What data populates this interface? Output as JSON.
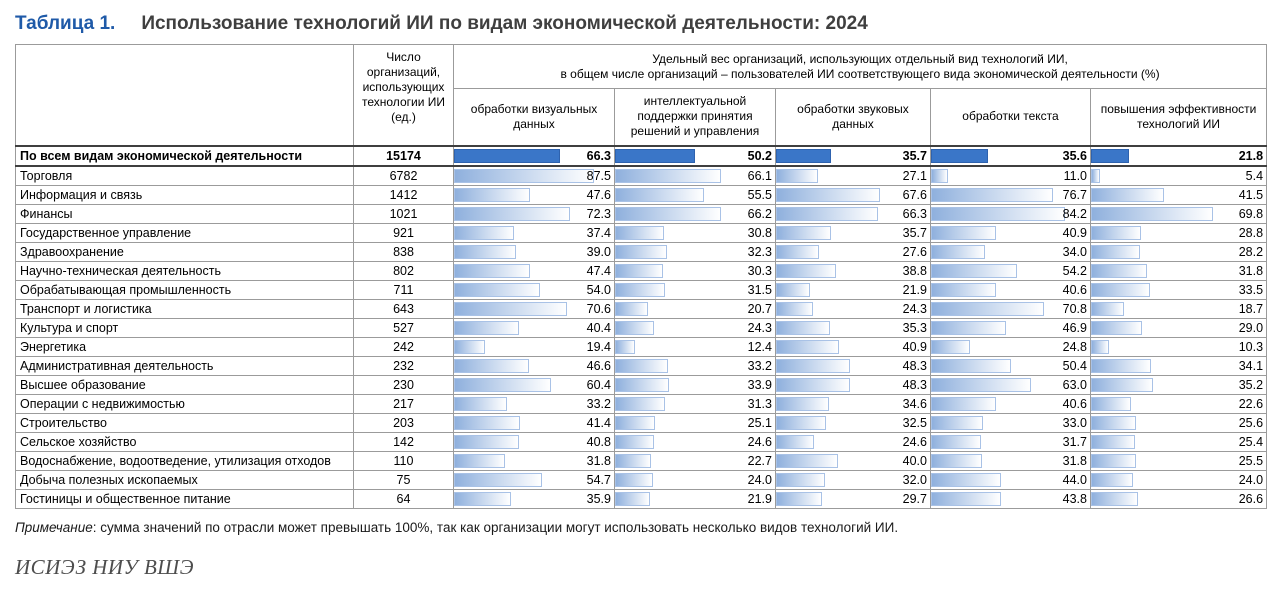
{
  "page": {
    "title_label": "Таблица 1.",
    "title_text": "Использование технологий ИИ по видам экономической деятельности: 2024",
    "note_prefix": "Примечание",
    "note_rest": ": сумма значений по отрасли может превышать 100%, так как организации могут использовать несколько видов технологий ИИ.",
    "footer": "ИСИЭЗ НИУ ВШЭ"
  },
  "table": {
    "org_header": "Число организаций, использующих технологии ИИ (ед.)",
    "group_header_line1": "Удельный вес организаций, использующих отдельный вид технологий ИИ,",
    "group_header_line2": "в общем числе организаций – пользователей ИИ соответствующего вида экономической деятельности (%)",
    "tech_columns": [
      "обработки  визуальных данных",
      "интеллектуальной поддержки принятия решений и управления",
      "обработки звуковых данных",
      "обработки текста",
      "повышения эффективности технологий ИИ"
    ]
  },
  "colors": {
    "title_accent": "#1F5AA8",
    "total_bar": "#3A76C8",
    "bar_gradient_start": "#8FB0DD",
    "bar_border": "#A9C2E6"
  },
  "chart_data": {
    "type": "table",
    "title": "Использование технологий ИИ по видам экономической деятельности: 2024",
    "value_columns": [
      "Число организаций, использующих технологии ИИ (ед.)",
      "обработки визуальных данных (%)",
      "интеллектуальной поддержки принятия решений и управления (%)",
      "обработки звуковых данных (%)",
      "обработки текста (%)",
      "повышения эффективности технологий ИИ (%)"
    ],
    "bar_scale": [
      0,
      100
    ],
    "total_row": {
      "label": "По всем видам экономической деятельности",
      "orgs": "15174",
      "values": [
        66.3,
        50.2,
        35.7,
        35.6,
        21.8
      ]
    },
    "rows": [
      {
        "label": "Торговля",
        "orgs": "6782",
        "values": [
          87.5,
          66.1,
          27.1,
          11.0,
          5.4
        ]
      },
      {
        "label": "Информация и связь",
        "orgs": "1412",
        "values": [
          47.6,
          55.5,
          67.6,
          76.7,
          41.5
        ]
      },
      {
        "label": "Финансы",
        "orgs": "1021",
        "values": [
          72.3,
          66.2,
          66.3,
          84.2,
          69.8
        ]
      },
      {
        "label": "Государственное управление",
        "orgs": "921",
        "values": [
          37.4,
          30.8,
          35.7,
          40.9,
          28.8
        ]
      },
      {
        "label": "Здравоохранение",
        "orgs": "838",
        "values": [
          39.0,
          32.3,
          27.6,
          34.0,
          28.2
        ]
      },
      {
        "label": "Научно-техническая деятельность",
        "orgs": "802",
        "values": [
          47.4,
          30.3,
          38.8,
          54.2,
          31.8
        ]
      },
      {
        "label": "Обрабатывающая промышленность",
        "orgs": "711",
        "values": [
          54.0,
          31.5,
          21.9,
          40.6,
          33.5
        ]
      },
      {
        "label": "Транспорт и логистика",
        "orgs": "643",
        "values": [
          70.6,
          20.7,
          24.3,
          70.8,
          18.7
        ]
      },
      {
        "label": "Культура и спорт",
        "orgs": "527",
        "values": [
          40.4,
          24.3,
          35.3,
          46.9,
          29.0
        ]
      },
      {
        "label": "Энергетика",
        "orgs": "242",
        "values": [
          19.4,
          12.4,
          40.9,
          24.8,
          10.3
        ]
      },
      {
        "label": "Административная деятельность",
        "orgs": "232",
        "values": [
          46.6,
          33.2,
          48.3,
          50.4,
          34.1
        ]
      },
      {
        "label": "Высшее образование",
        "orgs": "230",
        "values": [
          60.4,
          33.9,
          48.3,
          63.0,
          35.2
        ]
      },
      {
        "label": "Операции с недвижимостью",
        "orgs": "217",
        "values": [
          33.2,
          31.3,
          34.6,
          40.6,
          22.6
        ]
      },
      {
        "label": "Строительство",
        "orgs": "203",
        "values": [
          41.4,
          25.1,
          32.5,
          33.0,
          25.6
        ]
      },
      {
        "label": "Сельское хозяйство",
        "orgs": "142",
        "values": [
          40.8,
          24.6,
          24.6,
          31.7,
          25.4
        ]
      },
      {
        "label": "Водоснабжение, водоотведение, утилизация отходов",
        "orgs": "110",
        "values": [
          31.8,
          22.7,
          40.0,
          31.8,
          25.5
        ]
      },
      {
        "label": "Добыча полезных ископаемых",
        "orgs": "75",
        "values": [
          54.7,
          24.0,
          32.0,
          44.0,
          24.0
        ]
      },
      {
        "label": "Гостиницы и общественное питание",
        "orgs": "64",
        "values": [
          35.9,
          21.9,
          29.7,
          43.8,
          26.6
        ]
      }
    ]
  }
}
